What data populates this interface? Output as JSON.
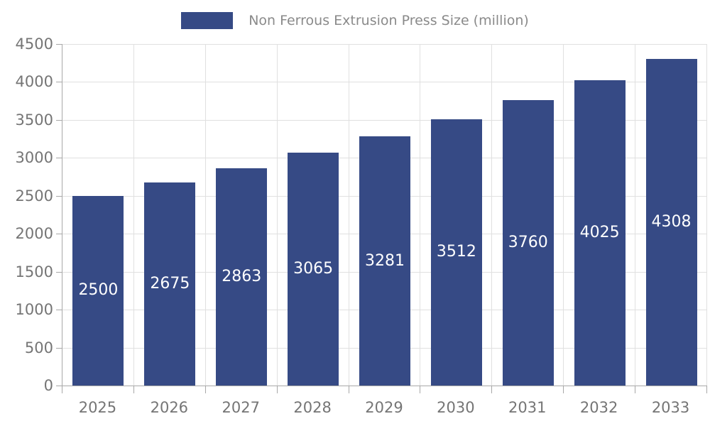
{
  "legend": {
    "label": "Non Ferrous Extrusion Press Size (million)"
  },
  "chart_data": {
    "type": "bar",
    "title": "Non Ferrous Extrusion Press Size (million)",
    "categories": [
      "2025",
      "2026",
      "2027",
      "2028",
      "2029",
      "2030",
      "2031",
      "2032",
      "2033"
    ],
    "values": [
      2500,
      2675,
      2863,
      3065,
      3281,
      3512,
      3760,
      4025,
      4308
    ],
    "xlabel": "",
    "ylabel": "",
    "ylim": [
      0,
      4500
    ],
    "ytick_step": 500,
    "yticks": [
      0,
      500,
      1000,
      1500,
      2000,
      2500,
      3000,
      3500,
      4000,
      4500
    ],
    "grid": true,
    "legend_position": "top-center",
    "value_labels": "centered-inside-bars",
    "colors": {
      "bar": "#364a85",
      "bar_value_text": "#ffffff",
      "grid": "#e0e0e0",
      "axis_line": "#a8a8a8",
      "tick_text": "#757575",
      "legend_text": "#8a8a8a",
      "background": "#ffffff"
    }
  }
}
